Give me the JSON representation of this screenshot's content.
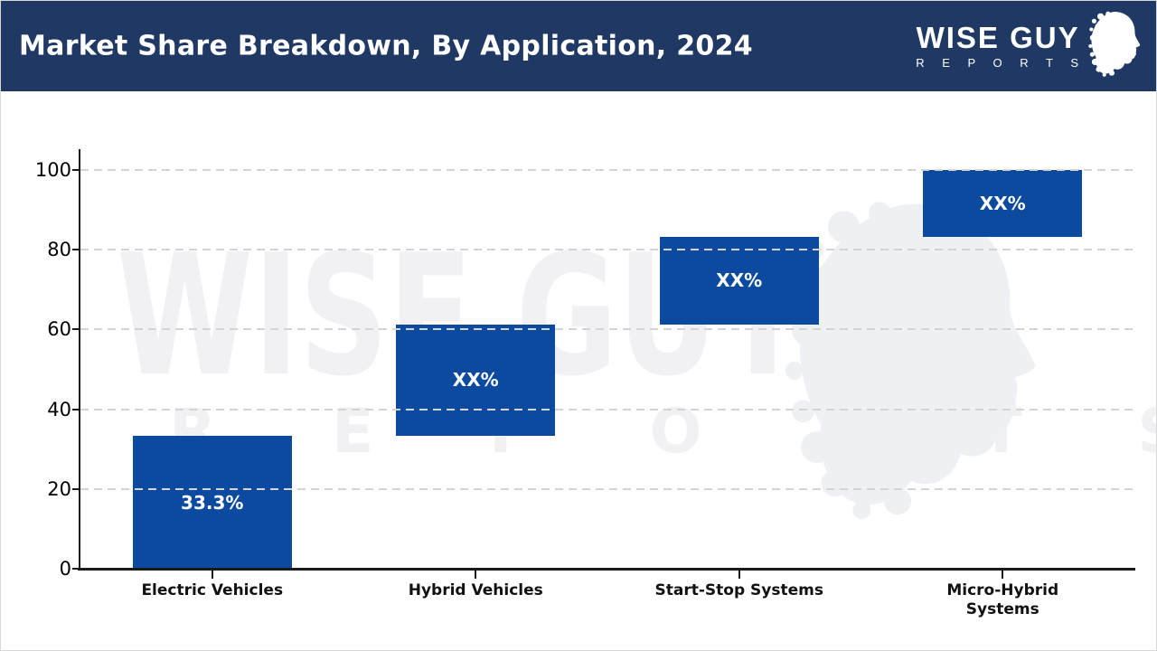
{
  "header": {
    "title": "Market Share Breakdown, By Application, 2024",
    "bg_color": "#1f3864",
    "logo": {
      "title": "WISE GUY",
      "subtitle": "R E P O R T S",
      "icon": "face-profile-dots"
    }
  },
  "watermark": {
    "line1": "WISE GUY",
    "line2": "R E P O R T S",
    "color": "#f1f1f4"
  },
  "chart_data": {
    "type": "bar",
    "variant": "waterfall",
    "title": "Market Share Breakdown, By Application, 2024",
    "categories": [
      "Electric Vehicles",
      "Hybrid Vehicles",
      "Start-Stop Systems",
      "Micro-Hybrid Systems"
    ],
    "segments": [
      {
        "category": "Electric Vehicles",
        "start": 0,
        "end": 33.3,
        "label": "33.3%"
      },
      {
        "category": "Hybrid Vehicles",
        "start": 33.3,
        "end": 61.3,
        "label": "XX%"
      },
      {
        "category": "Start-Stop Systems",
        "start": 61.3,
        "end": 83.3,
        "label": "XX%"
      },
      {
        "category": "Micro-Hybrid Systems",
        "start": 83.3,
        "end": 100,
        "label": "XX%"
      }
    ],
    "tick_label_lines": [
      [
        "Electric Vehicles"
      ],
      [
        "Hybrid Vehicles"
      ],
      [
        "Start-Stop Systems"
      ],
      [
        "Micro-Hybrid",
        "Systems"
      ]
    ],
    "yticks": [
      0,
      20,
      40,
      60,
      80,
      100
    ],
    "ylim": [
      0,
      105
    ],
    "xlabel": "",
    "ylabel": "",
    "grid": "horizontal-dashed",
    "grid_over_bars": true,
    "legend": "none",
    "bar_color": "#0b4a9e",
    "bar_label_color": "#ffffff",
    "grid_color": "#d4d4d4",
    "axis_color": "#1a1a1a"
  }
}
